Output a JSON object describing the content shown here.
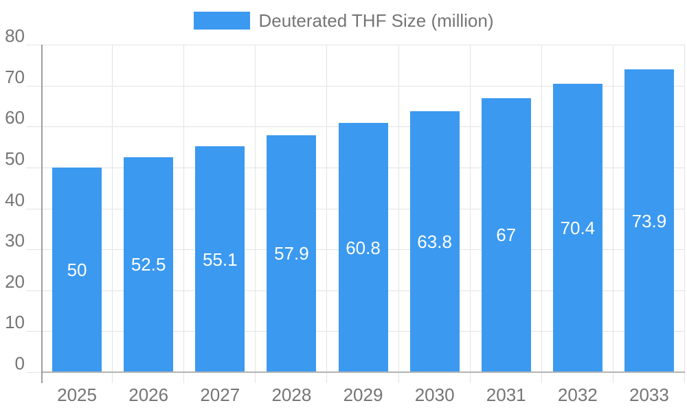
{
  "legend": {
    "label": "Deuterated THF Size (million)",
    "swatch_color": "#3b99f0"
  },
  "chart_data": {
    "type": "bar",
    "title": "",
    "xlabel": "",
    "ylabel": "",
    "categories": [
      "2025",
      "2026",
      "2027",
      "2028",
      "2029",
      "2030",
      "2031",
      "2032",
      "2033"
    ],
    "series": [
      {
        "name": "Deuterated THF Size (million)",
        "values": [
          50,
          52.5,
          55.1,
          57.9,
          60.8,
          63.8,
          67,
          70.4,
          73.9
        ]
      }
    ],
    "value_labels": [
      "50",
      "52.5",
      "55.1",
      "57.9",
      "60.8",
      "63.8",
      "67",
      "70.4",
      "73.9"
    ],
    "ylim": [
      0,
      80
    ],
    "yticks": [
      0,
      10,
      20,
      30,
      40,
      50,
      60,
      70,
      80
    ],
    "grid": true,
    "legend_position": "top",
    "colors": {
      "bar": "#3b99f0",
      "value_label": "#ffffff",
      "axis_text": "#757575",
      "gridline": "#e3e3e3",
      "baseline": "#b3b3b3",
      "axis_line": "#9e9e9e",
      "background": "#ffffff"
    }
  }
}
